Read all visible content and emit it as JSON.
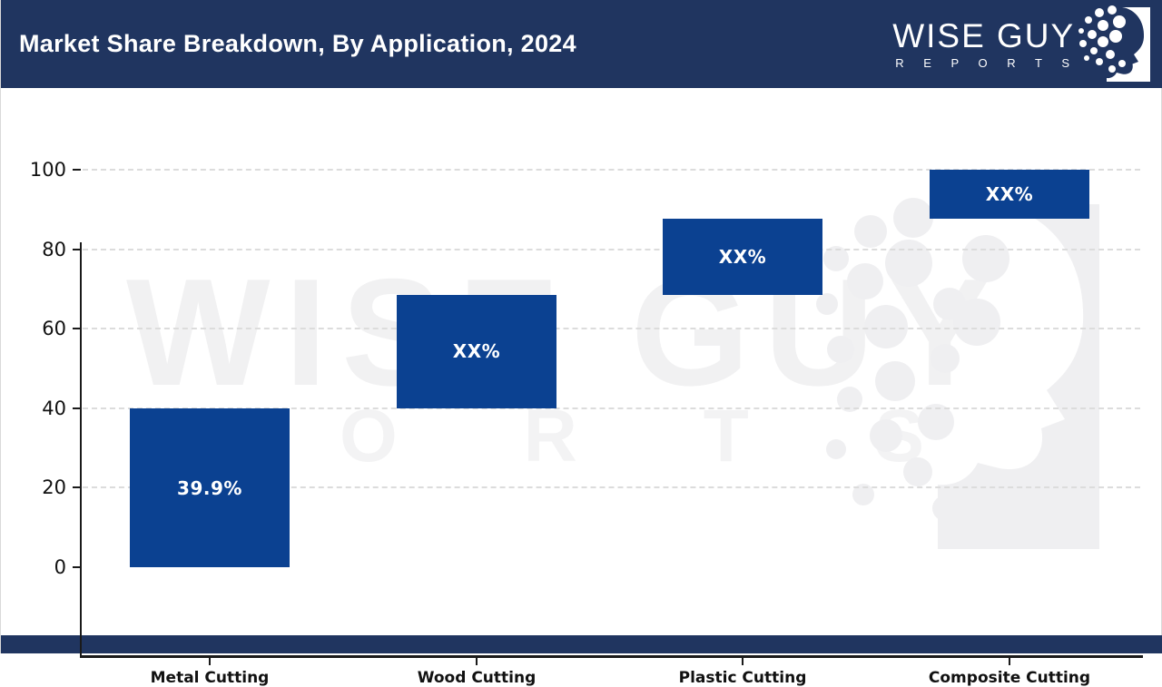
{
  "header": {
    "title": "Market Share Breakdown, By Application, 2024",
    "brand_line1": "WISE GUY",
    "brand_line2": "R E P O R T S"
  },
  "watermark": {
    "line1": "WISE GUY",
    "line2": "R O R T S"
  },
  "colors": {
    "header_bg": "#203560",
    "footer_bg": "#203560",
    "bar_blue": "#0b4191",
    "bar_label": "#ffffff",
    "gridline": "#dcdcdc",
    "axis": "#1a1a1a",
    "watermark": "#f1f1f2"
  },
  "chart_data": {
    "type": "bar",
    "variant": "waterfall",
    "title": "Market Share Breakdown, By Application, 2024",
    "categories": [
      "Metal Cutting",
      "Wood Cutting",
      "Plastic Cutting",
      "Composite Cutting"
    ],
    "segments": [
      {
        "category": "Metal Cutting",
        "start": 0,
        "end": 39.9,
        "label": "39.9%"
      },
      {
        "category": "Wood Cutting",
        "start": 39.9,
        "end": 68.6,
        "label": "XX%"
      },
      {
        "category": "Plastic Cutting",
        "start": 68.6,
        "end": 87.6,
        "label": "XX%"
      },
      {
        "category": "Composite Cutting",
        "start": 87.6,
        "end": 100,
        "label": "XX%"
      }
    ],
    "xlabel": "",
    "ylabel": "",
    "ylim": [
      0,
      100
    ],
    "yticks": [
      0,
      20,
      40,
      60,
      80,
      100
    ],
    "grid": "horizontal-dashed",
    "legend": false,
    "bar_color": "#0b4191",
    "bar_label_color": "#ffffff"
  }
}
